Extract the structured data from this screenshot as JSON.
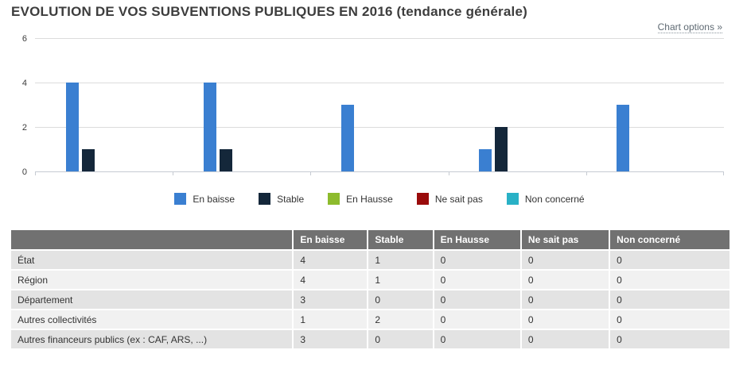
{
  "header": {
    "title": "EVOLUTION DE VOS SUBVENTIONS PUBLIQUES EN 2016 (tendance générale)",
    "chart_options_label": "Chart options »"
  },
  "chart_data": {
    "type": "bar",
    "title": "EVOLUTION DE VOS SUBVENTIONS PUBLIQUES EN 2016 (tendance générale)",
    "categories": [
      "État",
      "Région",
      "Département",
      "Autres collectivités",
      "Autres financeurs publics (ex : CAF, ARS, ...)"
    ],
    "series": [
      {
        "name": "En baisse",
        "color": "#3a7fd1",
        "values": [
          4,
          4,
          3,
          1,
          3
        ]
      },
      {
        "name": "Stable",
        "color": "#14273a",
        "values": [
          1,
          1,
          0,
          2,
          0
        ]
      },
      {
        "name": "En Hausse",
        "color": "#8dbb2d",
        "values": [
          0,
          0,
          0,
          0,
          0
        ]
      },
      {
        "name": "Ne sait pas",
        "color": "#9a0b0b",
        "values": [
          0,
          0,
          0,
          0,
          0
        ]
      },
      {
        "name": "Non concerné",
        "color": "#29b1c6",
        "values": [
          0,
          0,
          0,
          0,
          0
        ]
      }
    ],
    "xlabel": "",
    "ylabel": "",
    "ylim": [
      0,
      6
    ],
    "yticks": [
      0,
      2,
      4,
      6
    ],
    "grid": true,
    "legend_position": "bottom"
  },
  "table": {
    "columns": [
      "",
      "En baisse",
      "Stable",
      "En Hausse",
      "Ne sait pas",
      "Non concerné"
    ],
    "rows": [
      {
        "label": "État",
        "values": [
          4,
          1,
          0,
          0,
          0
        ]
      },
      {
        "label": "Région",
        "values": [
          4,
          1,
          0,
          0,
          0
        ]
      },
      {
        "label": "Département",
        "values": [
          3,
          0,
          0,
          0,
          0
        ]
      },
      {
        "label": "Autres collectivités",
        "values": [
          1,
          2,
          0,
          0,
          0
        ]
      },
      {
        "label": "Autres financeurs publics (ex : CAF, ARS, ...)",
        "values": [
          3,
          0,
          0,
          0,
          0
        ]
      }
    ]
  }
}
